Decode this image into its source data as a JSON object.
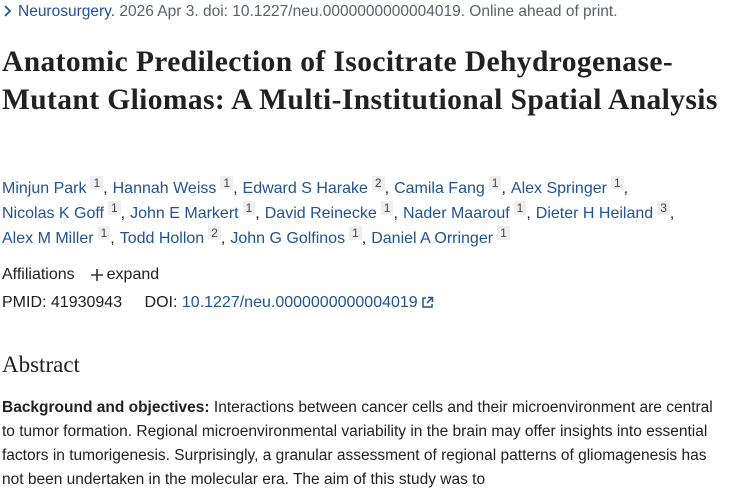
{
  "citation": {
    "journal": "Neurosurgery.",
    "details": "2026 Apr 3. doi: 10.1227/neu.0000000000004019. Online ahead of print."
  },
  "title": "Anatomic Predilection of Isocitrate Dehydrogenase-Mutant Gliomas: A Multi-Institutional Spatial Analysis",
  "authors": {
    "separator": ",",
    "lines": [
      [
        {
          "name": "Minjun Park",
          "aff": "1"
        },
        {
          "name": "Hannah Weiss",
          "aff": "1"
        },
        {
          "name": "Edward S Harake",
          "aff": "2"
        },
        {
          "name": "Camila Fang",
          "aff": "1"
        },
        {
          "name": "Alex Springer",
          "aff": "1"
        }
      ],
      [
        {
          "name": "Nicolas K Goff",
          "aff": "1"
        },
        {
          "name": "John E Markert",
          "aff": "1"
        },
        {
          "name": "David Reinecke",
          "aff": "1"
        },
        {
          "name": "Nader Maarouf",
          "aff": "1"
        },
        {
          "name": "Dieter H Heiland",
          "aff": "3"
        }
      ],
      [
        {
          "name": "Alex M Miller",
          "aff": "1"
        },
        {
          "name": "Todd Hollon",
          "aff": "2"
        },
        {
          "name": "John G Golfinos",
          "aff": "1"
        },
        {
          "name": "Daniel A Orringer",
          "aff": "1"
        }
      ]
    ]
  },
  "affiliations": {
    "label": "Affiliations",
    "toggle": "expand"
  },
  "identifiers": {
    "pmid_label": "PMID:",
    "pmid": "41930943",
    "doi_label": "DOI:",
    "doi": "10.1227/neu.0000000000004019"
  },
  "abstract": {
    "heading": "Abstract",
    "label": "Background and objectives:",
    "text": "Interactions between cancer cells and their microenvironment are central to tumor formation. Regional microenvironmental variability in the brain may offer insights into essential factors in tumorigenesis. Surprisingly, a granular assessment of regional patterns of gliomagenesis has not been undertaken in the molecular era. The aim of this study was to"
  }
}
